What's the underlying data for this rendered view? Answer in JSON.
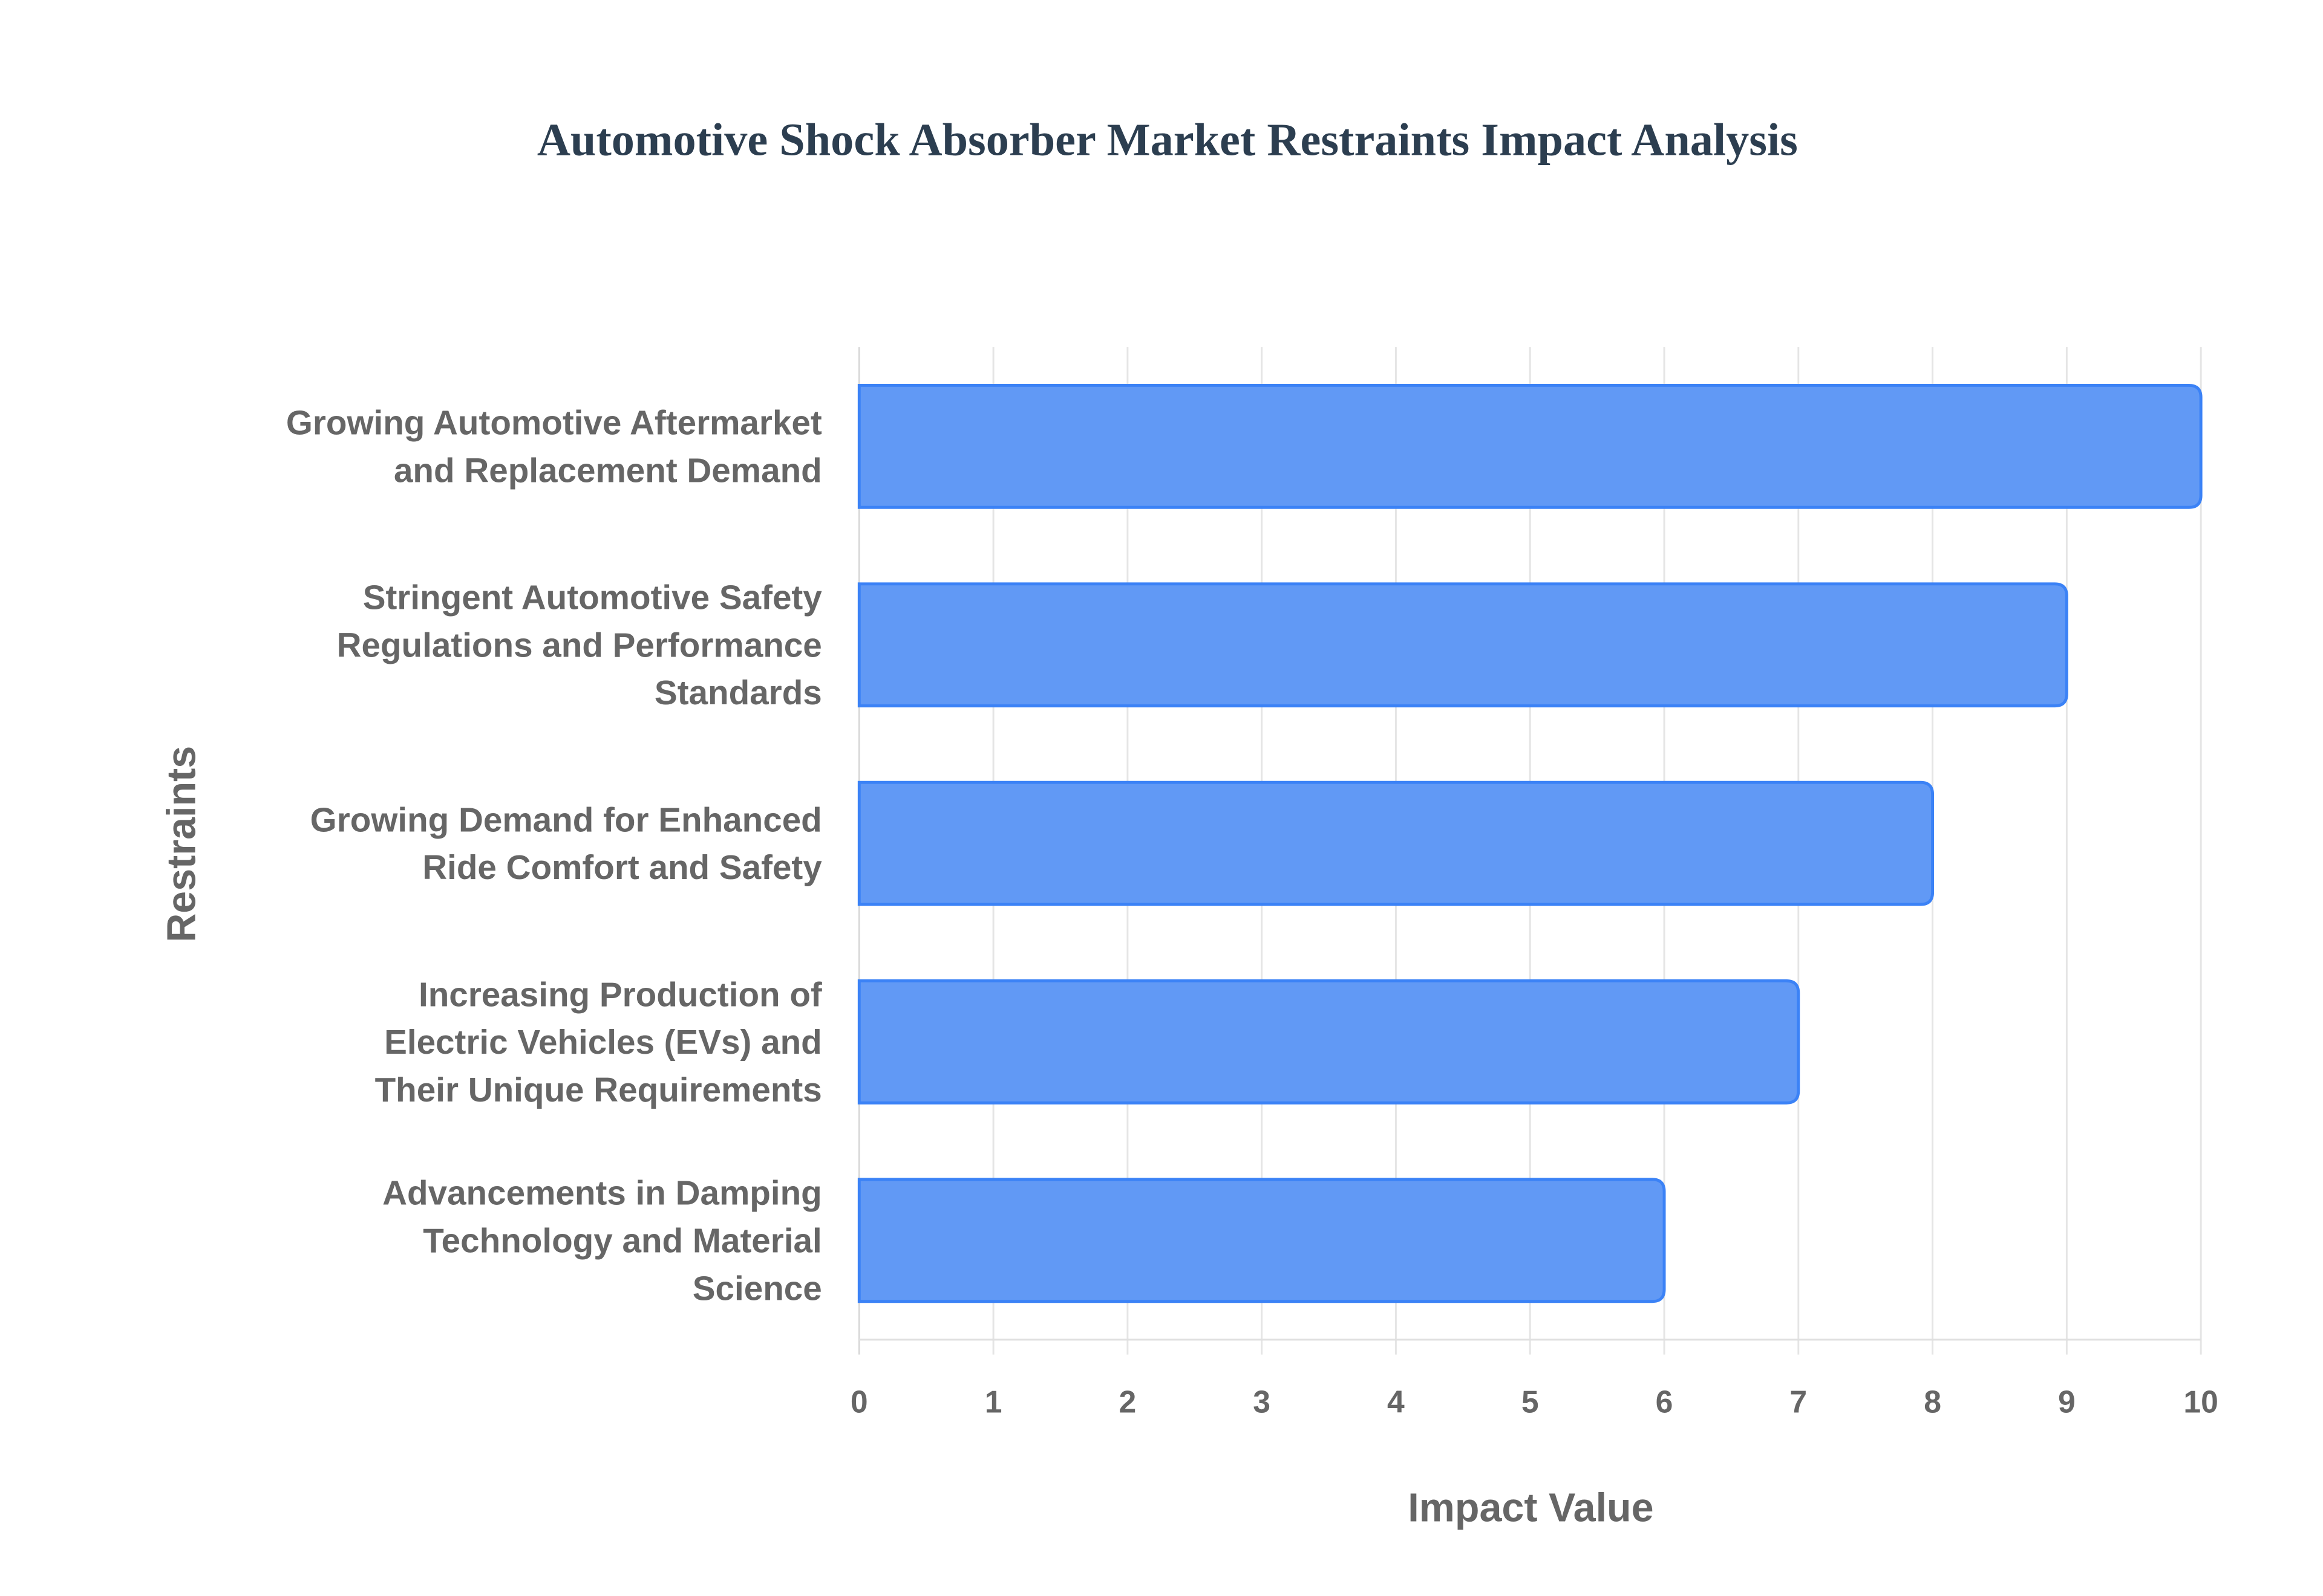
{
  "chart_data": {
    "type": "bar",
    "orientation": "horizontal",
    "title": "Automotive Shock Absorber Market Restraints Impact Analysis",
    "xlabel": "Impact Value",
    "ylabel": "Restraints",
    "xlim": [
      0,
      10
    ],
    "xticks": [
      "0",
      "1",
      "2",
      "3",
      "4",
      "5",
      "6",
      "7",
      "8",
      "9",
      "10"
    ],
    "grid": true,
    "categories": [
      [
        "Growing Automotive Aftermarket",
        "and Replacement Demand"
      ],
      [
        "Stringent Automotive Safety",
        "Regulations and Performance",
        "Standards"
      ],
      [
        "Growing Demand for Enhanced",
        "Ride Comfort and Safety"
      ],
      [
        "Increasing Production of",
        "Electric Vehicles (EVs) and",
        "Their Unique Requirements"
      ],
      [
        "Advancements in Damping",
        "Technology and Material",
        "Science"
      ]
    ],
    "values": [
      10,
      9,
      8,
      7,
      6
    ],
    "colors": {
      "bar_fill": "#6199f5",
      "bar_border": "#3b82f6",
      "grid": "#e5e5e5"
    }
  }
}
